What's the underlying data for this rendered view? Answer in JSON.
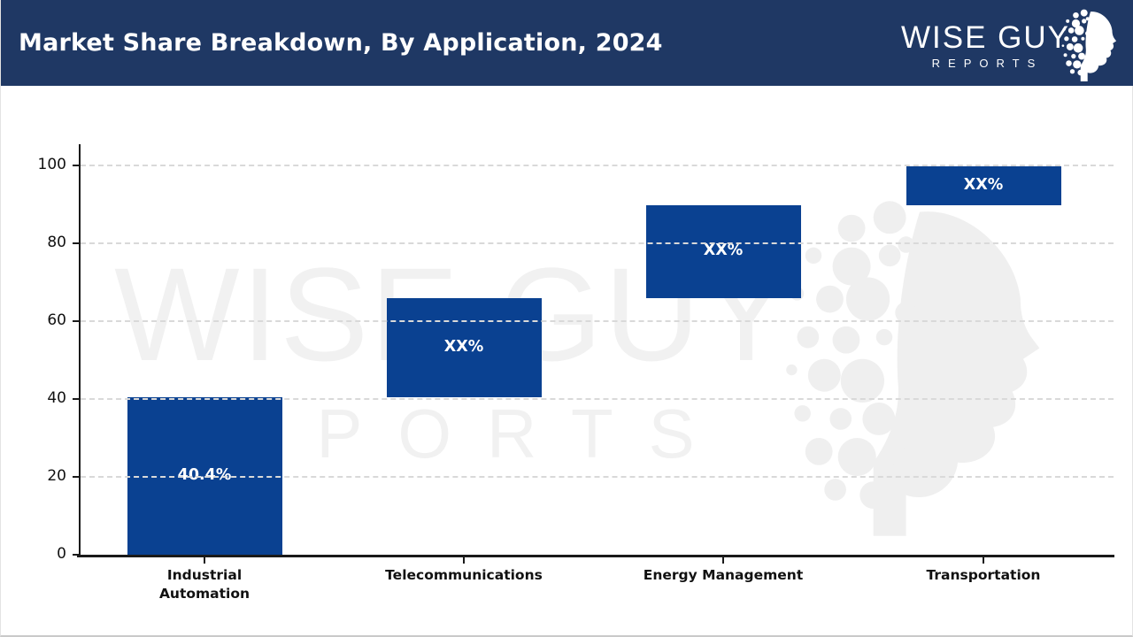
{
  "header": {
    "title": "Market Share Breakdown, By Application, 2024",
    "logo": {
      "title": "WISE GUY",
      "subtitle": "REPORTS"
    }
  },
  "watermark": {
    "line1": "WISE GUY",
    "line2": "REPORTS"
  },
  "colors": {
    "header_bg": "#1f3864",
    "bar": "#0a4191",
    "grid": "#d9d9d9",
    "axis": "#1a1a1a",
    "watermark": "#f1f1f1",
    "title_text": "#ffffff"
  },
  "chart_data": {
    "type": "bar",
    "variant": "waterfall",
    "title": "Market Share Breakdown, By Application, 2024",
    "categories": [
      "Industrial\nAutomation",
      "Telecommunications",
      "Energy Management",
      "Transportation"
    ],
    "segments": [
      {
        "category": "Industrial Automation",
        "start": 0,
        "end": 40.4,
        "label": "40.4%"
      },
      {
        "category": "Telecommunications",
        "start": 40.4,
        "end": 66,
        "label": "XX%"
      },
      {
        "category": "Energy Management",
        "start": 66,
        "end": 89.8,
        "label": "XX%"
      },
      {
        "category": "Transportation",
        "start": 89.8,
        "end": 99.8,
        "label": "XX%"
      }
    ],
    "y_ticks": [
      0,
      20,
      40,
      60,
      80,
      100
    ],
    "ylim": [
      0,
      105
    ],
    "xlabel": "",
    "ylabel": "",
    "grid": "dashed-horizontal",
    "legend": "none",
    "bar_color": "#0a4191",
    "bar_label_color": "#ffffff"
  }
}
